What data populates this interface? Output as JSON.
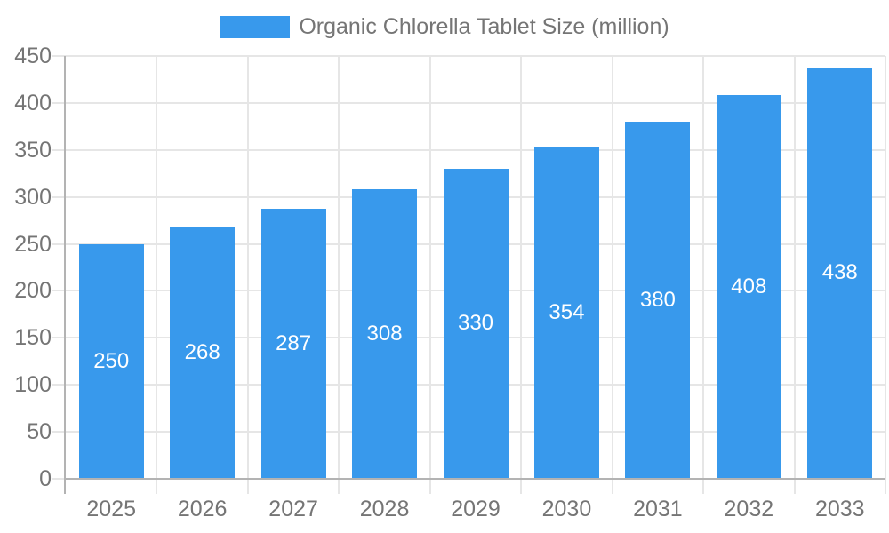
{
  "chart_data": {
    "type": "bar",
    "title": "Organic Chlorella Tablet Size (million)",
    "categories": [
      "2025",
      "2026",
      "2027",
      "2028",
      "2029",
      "2030",
      "2031",
      "2032",
      "2033"
    ],
    "values": [
      250,
      268,
      287,
      308,
      330,
      354,
      380,
      408,
      438
    ],
    "xlabel": "",
    "ylabel": "",
    "ylim": [
      0,
      450
    ],
    "yticks": [
      0,
      50,
      100,
      150,
      200,
      250,
      300,
      350,
      400,
      450
    ],
    "grid": true,
    "legend_position": "top-center",
    "value_labels": "inside-center",
    "colors": {
      "bar": "#3899ec",
      "value_label": "#ffffff",
      "axis_text": "#757575",
      "legend_text": "#757575",
      "gridline": "#e6e6e6",
      "axis_line": "#b3b3b3",
      "background": "#ffffff"
    }
  }
}
